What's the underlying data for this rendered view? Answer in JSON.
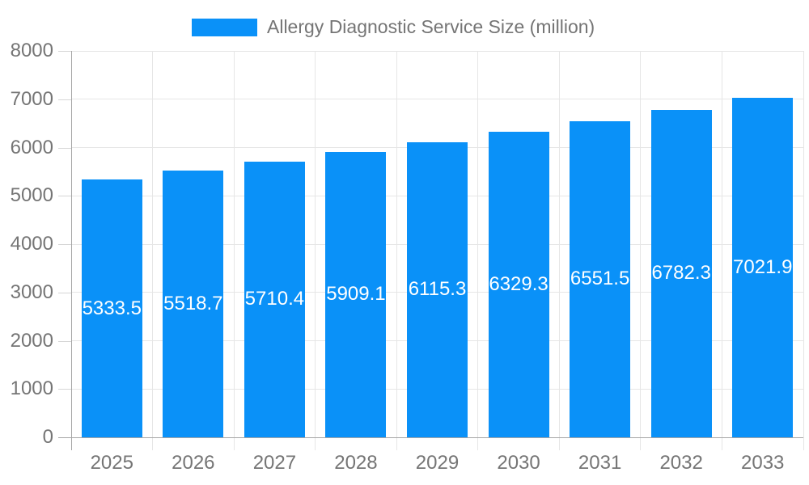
{
  "legend": {
    "label": "Allergy Diagnostic Service Size (million)"
  },
  "chart_data": {
    "type": "bar",
    "title": "Allergy Diagnostic Service Size (million)",
    "categories": [
      "2025",
      "2026",
      "2027",
      "2028",
      "2029",
      "2030",
      "2031",
      "2032",
      "2033"
    ],
    "values": [
      5333.5,
      5518.7,
      5710.4,
      5909.1,
      6115.3,
      6329.3,
      6551.5,
      6782.3,
      7021.9
    ],
    "series": [
      {
        "name": "Allergy Diagnostic Service Size (million)",
        "values": [
          5333.5,
          5518.7,
          5710.4,
          5909.1,
          6115.3,
          6329.3,
          6551.5,
          6782.3,
          7021.9
        ]
      }
    ],
    "xlabel": "",
    "ylabel": "",
    "ylim": [
      0,
      8000
    ],
    "ytick_step": 1000,
    "yticks": [
      0,
      1000,
      2000,
      3000,
      4000,
      5000,
      6000,
      7000,
      8000
    ],
    "grid": true,
    "legend_position": "top-center",
    "value_labels_inside_bars": true,
    "colors": {
      "bar": "#0a91f8",
      "value_label": "#ffffff",
      "axis_label": "#757575",
      "legend_text": "#757575",
      "gridline": "#e6e6e6",
      "tick_line": "#d6d6d6",
      "axis_line": "#a6a6a6",
      "background": "#ffffff"
    }
  }
}
